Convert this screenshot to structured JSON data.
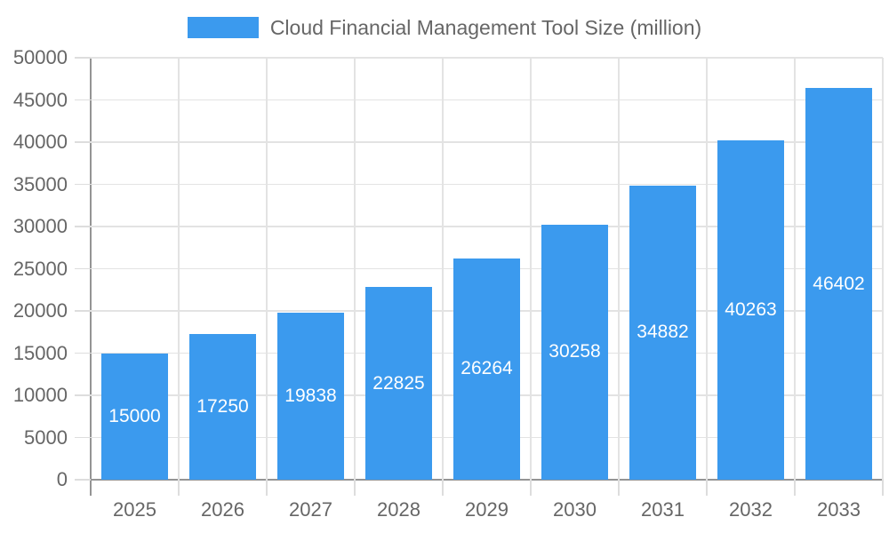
{
  "chart_data": {
    "type": "bar",
    "title": "Cloud Financial Management Tool Size (million)",
    "legend_label": "Cloud Financial Management Tool Size (million)",
    "legend_position": "top-center",
    "categories": [
      "2025",
      "2026",
      "2027",
      "2028",
      "2029",
      "2030",
      "2031",
      "2032",
      "2033"
    ],
    "values": [
      15000,
      17250,
      19838,
      22825,
      26264,
      30258,
      34882,
      40263,
      46402
    ],
    "value_label_position": "inside-middle",
    "xlabel": "",
    "ylabel": "",
    "ylim": [
      0,
      50000
    ],
    "yticks": [
      0,
      5000,
      10000,
      15000,
      20000,
      25000,
      30000,
      35000,
      40000,
      45000,
      50000
    ],
    "grid": true
  },
  "style": {
    "bar_color": "#3b9aee",
    "value_label_color": "#ffffff",
    "axis_text_color": "#666666",
    "grid_color": "#e3e3e3",
    "tick_color": "#dddddd",
    "axis_line_color": "#949494",
    "background_color": "#ffffff"
  }
}
